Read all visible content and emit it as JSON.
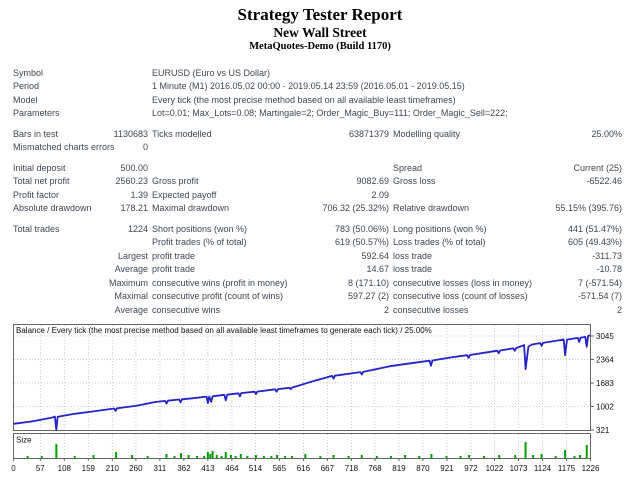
{
  "header": {
    "title": "Strategy Tester Report",
    "expert": "New Wall Street",
    "server": "MetaQuotes-Demo (Build 1170)"
  },
  "table": {
    "rows": [
      {
        "c1": "Symbol",
        "c3": "EURUSD (Euro vs US Dollar)",
        "span": true
      },
      {
        "c1": "Period",
        "c3": "1 Minute (M1) 2016.05.02 00:00 - 2019.05.14 23:59 (2016.05.01 - 2019.05.15)",
        "span": true
      },
      {
        "c1": "Model",
        "c3": "Every tick (the most precise method based on all available least timeframes)",
        "span": true
      },
      {
        "c1": "Parameters",
        "c3": "Lot=0.01; Max_Lots=0.08; Martingale=2; Order_Magic_Buy=111; Order_Magic_Sell=222;",
        "span": true
      },
      {
        "c1": "Bars in test",
        "c2": "1130683",
        "c3": "Ticks modelled",
        "c4": "63871379",
        "c5": "Modelling quality",
        "c6": "25.00%",
        "gap": true
      },
      {
        "c1": "Mismatched charts errors",
        "c2": "0"
      },
      {
        "c1": "Initial deposit",
        "c2": "500.00",
        "c5": "Spread",
        "c6": "Current (25)",
        "gap": true
      },
      {
        "c1": "Total net profit",
        "c2": "2560.23",
        "c3": "Gross profit",
        "c4": "9082.69",
        "c5": "Gross loss",
        "c6": "-6522.46"
      },
      {
        "c1": "Profit factor",
        "c2": "1.39",
        "c3": "Expected payoff",
        "c4": "2.09"
      },
      {
        "c1": "Absolute drawdown",
        "c2": "178.21",
        "c3": "Maximal drawdown",
        "c4": "706.32 (25.32%)",
        "c5": "Relative drawdown",
        "c6": "55.15% (395.76)"
      },
      {
        "c1": "Total trades",
        "c2": "1224",
        "c3": "Short positions (won %)",
        "c4": "783 (50.06%)",
        "c5": "Long positions (won %)",
        "c6": "441 (51.47%)",
        "gap": true
      },
      {
        "c3": "Profit trades (% of total)",
        "c4": "619 (50.57%)",
        "c5": "Loss trades (% of total)",
        "c6": "605 (49.43%)"
      },
      {
        "c2": "Largest",
        "c3": "profit trade",
        "c4": "592.64",
        "c5": "loss trade",
        "c6": "-311.73"
      },
      {
        "c2": "Average",
        "c3": "profit trade",
        "c4": "14.67",
        "c5": "loss trade",
        "c6": "-10.78"
      },
      {
        "c2": "Maximum",
        "c3": "consecutive wins (profit in money)",
        "c4": "8 (171.10)",
        "c5": "consecutive losses (loss in money)",
        "c6": "7 (-571.54)"
      },
      {
        "c2": "Maximal",
        "c3": "consecutive profit (count of wins)",
        "c4": "597.27 (2)",
        "c5": "consecutive loss (count of losses)",
        "c6": "-571.54 (7)"
      },
      {
        "c2": "Average",
        "c3": "consecutive wins",
        "c4": "2",
        "c5": "consecutive losses",
        "c6": "2"
      }
    ]
  },
  "chart_data": {
    "type": "line",
    "title": "Balance / Every tick (the most precise method based on all available least timeframes to generate each tick) / 25.00%",
    "size_label": "Size",
    "x_range": [
      0,
      1226
    ],
    "y_ticks": [
      321,
      1002,
      1683,
      2364,
      3045
    ],
    "x_ticks": [
      0,
      57,
      108,
      159,
      210,
      260,
      311,
      362,
      413,
      464,
      514,
      565,
      616,
      667,
      718,
      768,
      819,
      870,
      921,
      972,
      1022,
      1073,
      1124,
      1175,
      1226
    ],
    "grid": "dotted",
    "legend_position": "none",
    "colors": {
      "line": "#2323C8",
      "bars": "#00A000",
      "grid": "#C9C9C9",
      "border": "#666666",
      "text": "#3F4752"
    },
    "balance_series": [
      [
        0,
        500
      ],
      [
        40,
        570
      ],
      [
        80,
        675
      ],
      [
        88,
        710
      ],
      [
        91,
        325
      ],
      [
        94,
        705
      ],
      [
        130,
        790
      ],
      [
        170,
        860
      ],
      [
        214,
        945
      ],
      [
        217,
        875
      ],
      [
        220,
        950
      ],
      [
        260,
        1020
      ],
      [
        300,
        1130
      ],
      [
        322,
        1165
      ],
      [
        325,
        1085
      ],
      [
        328,
        1170
      ],
      [
        352,
        1205
      ],
      [
        355,
        1125
      ],
      [
        358,
        1210
      ],
      [
        380,
        1240
      ],
      [
        410,
        1290
      ],
      [
        413,
        1100
      ],
      [
        416,
        1292
      ],
      [
        420,
        1135
      ],
      [
        423,
        1298
      ],
      [
        448,
        1340
      ],
      [
        451,
        1180
      ],
      [
        454,
        1345
      ],
      [
        478,
        1385
      ],
      [
        481,
        1295
      ],
      [
        484,
        1390
      ],
      [
        512,
        1430
      ],
      [
        515,
        1360
      ],
      [
        518,
        1435
      ],
      [
        556,
        1500
      ],
      [
        559,
        1430
      ],
      [
        562,
        1505
      ],
      [
        586,
        1545
      ],
      [
        589,
        1500
      ],
      [
        592,
        1550
      ],
      [
        640,
        1750
      ],
      [
        677,
        1890
      ],
      [
        680,
        1810
      ],
      [
        683,
        1895
      ],
      [
        737,
        2000
      ],
      [
        740,
        1925
      ],
      [
        743,
        2005
      ],
      [
        800,
        2170
      ],
      [
        884,
        2330
      ],
      [
        887,
        2180
      ],
      [
        890,
        2335
      ],
      [
        930,
        2425
      ],
      [
        964,
        2490
      ],
      [
        967,
        2410
      ],
      [
        970,
        2495
      ],
      [
        1028,
        2620
      ],
      [
        1031,
        2545
      ],
      [
        1034,
        2625
      ],
      [
        1062,
        2690
      ],
      [
        1065,
        2615
      ],
      [
        1068,
        2695
      ],
      [
        1085,
        2780
      ],
      [
        1088,
        2083
      ],
      [
        1094,
        2740
      ],
      [
        1102,
        2800
      ],
      [
        1119,
        2840
      ],
      [
        1122,
        2760
      ],
      [
        1125,
        2845
      ],
      [
        1150,
        2900
      ],
      [
        1169,
        2945
      ],
      [
        1172,
        2490
      ],
      [
        1176,
        2940
      ],
      [
        1199,
        2990
      ],
      [
        1202,
        2870
      ],
      [
        1205,
        2995
      ],
      [
        1215,
        3020
      ],
      [
        1218,
        2735
      ],
      [
        1221,
        3045
      ],
      [
        1226,
        3062
      ]
    ],
    "size_bars": [
      [
        30,
        2
      ],
      [
        60,
        2
      ],
      [
        91,
        14
      ],
      [
        130,
        2
      ],
      [
        170,
        3
      ],
      [
        218,
        6
      ],
      [
        252,
        3
      ],
      [
        285,
        2
      ],
      [
        325,
        4
      ],
      [
        342,
        2
      ],
      [
        356,
        5
      ],
      [
        372,
        3
      ],
      [
        390,
        2
      ],
      [
        405,
        2
      ],
      [
        413,
        6
      ],
      [
        418,
        4
      ],
      [
        423,
        7
      ],
      [
        432,
        3
      ],
      [
        442,
        2
      ],
      [
        451,
        6
      ],
      [
        462,
        3
      ],
      [
        472,
        2
      ],
      [
        483,
        4
      ],
      [
        497,
        2
      ],
      [
        515,
        3
      ],
      [
        532,
        2
      ],
      [
        548,
        2
      ],
      [
        560,
        3
      ],
      [
        577,
        2
      ],
      [
        592,
        2
      ],
      [
        620,
        4
      ],
      [
        652,
        2
      ],
      [
        680,
        3
      ],
      [
        712,
        2
      ],
      [
        740,
        3
      ],
      [
        772,
        2
      ],
      [
        802,
        2
      ],
      [
        832,
        3
      ],
      [
        862,
        2
      ],
      [
        888,
        4
      ],
      [
        920,
        2
      ],
      [
        950,
        2
      ],
      [
        968,
        3
      ],
      [
        1000,
        2
      ],
      [
        1032,
        3
      ],
      [
        1066,
        3
      ],
      [
        1088,
        16
      ],
      [
        1104,
        3
      ],
      [
        1122,
        4
      ],
      [
        1152,
        2
      ],
      [
        1172,
        8
      ],
      [
        1192,
        2
      ],
      [
        1204,
        3
      ],
      [
        1218,
        13
      ]
    ]
  }
}
